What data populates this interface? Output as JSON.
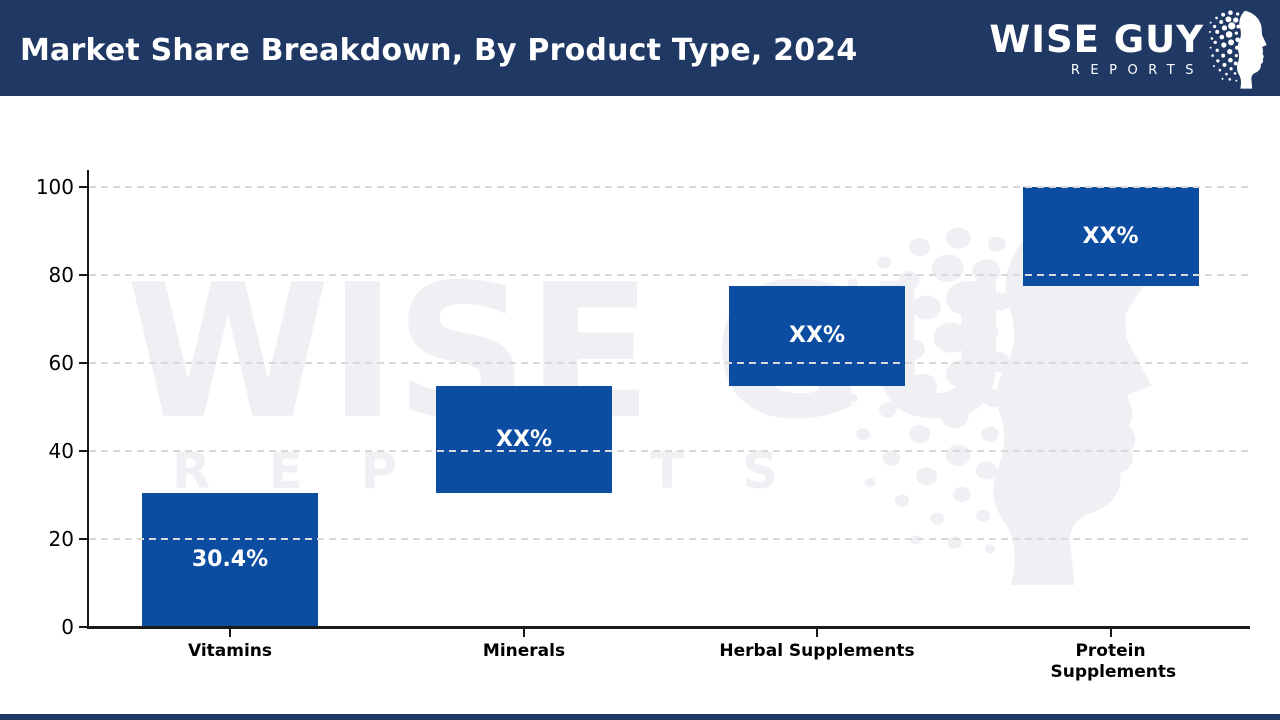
{
  "header": {
    "title": "Market Share Breakdown, By Product Type, 2024",
    "logo": {
      "name": "WISE GUY",
      "subtitle": "REPORTS"
    }
  },
  "watermark": {
    "text": "WISE GUY",
    "subtext": "REPORTS"
  },
  "chart_data": {
    "type": "bar",
    "subtype": "waterfall",
    "title": "Market Share Breakdown, By Product Type, 2024",
    "xlabel": "",
    "ylabel": "",
    "ylim": [
      0,
      100
    ],
    "y_ticks": [
      0,
      20,
      40,
      60,
      80,
      100
    ],
    "grid": "horizontal-dashed",
    "legend": "none",
    "categories": [
      "Vitamins",
      "Minerals",
      "Herbal Supplements",
      "Protein Supplements"
    ],
    "segments": [
      {
        "category": "Vitamins",
        "start": 0,
        "end": 30.4,
        "label": "30.4%"
      },
      {
        "category": "Minerals",
        "start": 30.4,
        "end": 54.8,
        "label": "XX%"
      },
      {
        "category": "Herbal Supplements",
        "start": 54.8,
        "end": 77.5,
        "label": "XX%"
      },
      {
        "category": "Protein Supplements",
        "start": 77.5,
        "end": 100,
        "label": "XX%"
      }
    ],
    "bar_color": "#0C4DA1",
    "bar_label_color": "#FFFFFF"
  },
  "colors": {
    "header_bg": "#203864",
    "footer_bg": "#203864",
    "chart_bg": "#FFFFFF",
    "axis": "#1A1A1A",
    "tick_label": "#000000",
    "gridline": "#D9D9D9",
    "watermark": "#EFF0F3"
  }
}
